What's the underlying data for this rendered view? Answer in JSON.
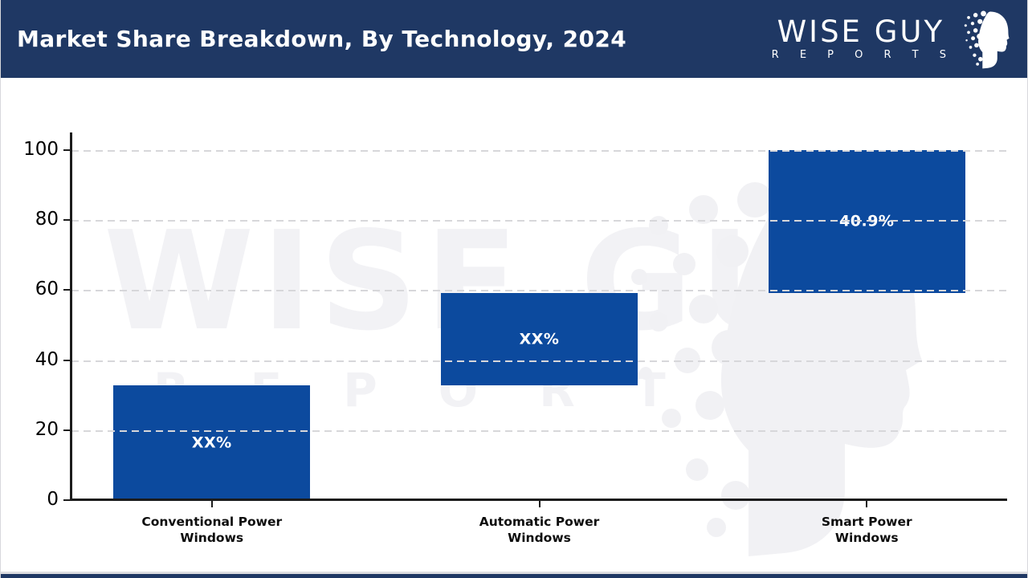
{
  "header": {
    "title": "Market Share Breakdown, By Technology, 2024",
    "bg_color": "#1f3864",
    "logo": {
      "brand": "WISE GUY",
      "sub": "R E P O R T S"
    }
  },
  "watermark": {
    "line1": "WISE GUY",
    "line2": "REPORTS"
  },
  "chart_data": {
    "type": "bar",
    "variant": "floating-range-bars (stacked breakdown, each bar starts where previous ends)",
    "title": "Market Share Breakdown, By Technology, 2024",
    "categories": [
      "Conventional Power\nWindows",
      "Automatic Power\nWindows",
      "Smart Power\nWindows"
    ],
    "bars": [
      {
        "category": "Conventional Power Windows",
        "start": 0,
        "end": 32.7,
        "label": "XX%"
      },
      {
        "category": "Automatic Power Windows",
        "start": 32.7,
        "end": 59.1,
        "label": "XX%"
      },
      {
        "category": "Smart Power Windows",
        "start": 59.1,
        "end": 100,
        "label": "40.9%"
      }
    ],
    "bar_color": "#0c4a9e",
    "label_color": "#ffffff",
    "xlabel": "",
    "ylabel": "",
    "ylim": [
      0,
      100
    ],
    "yticks": [
      0,
      20,
      40,
      60,
      80,
      100
    ],
    "grid": "horizontal dashed, drawn above bars",
    "grid_color": "#d7d7da",
    "legend": "none",
    "layout": {
      "bar_centers": [
        0.15,
        0.5,
        0.85
      ],
      "bar_width_frac": 0.21
    }
  }
}
